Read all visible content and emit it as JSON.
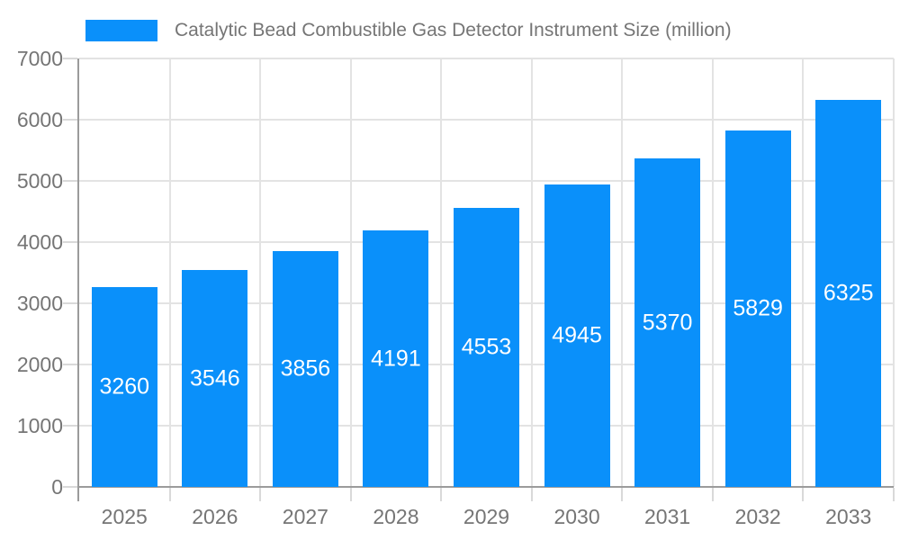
{
  "chart_data": {
    "type": "bar",
    "title": "Catalytic Bead Combustible Gas Detector Instrument Size (million)",
    "categories": [
      "2025",
      "2026",
      "2027",
      "2028",
      "2029",
      "2030",
      "2031",
      "2032",
      "2033"
    ],
    "values": [
      3260,
      3546,
      3856,
      4191,
      4553,
      4945,
      5370,
      5829,
      6325
    ],
    "xlabel": "",
    "ylabel": "",
    "ylim": [
      0,
      7000
    ],
    "ytick_step": 1000,
    "yticks": [
      0,
      1000,
      2000,
      3000,
      4000,
      5000,
      6000,
      7000
    ],
    "grid": true,
    "legend_position": "top",
    "value_labels": "inside-center",
    "colors": {
      "bar": "#0A90FA",
      "value_label": "#FFFFFF",
      "axis_text": "#757575",
      "axis_line": "#9B9B9B",
      "grid_line": "#E3E3E3",
      "tick_line": "#D9D9D9",
      "background": "#FFFFFF"
    }
  }
}
